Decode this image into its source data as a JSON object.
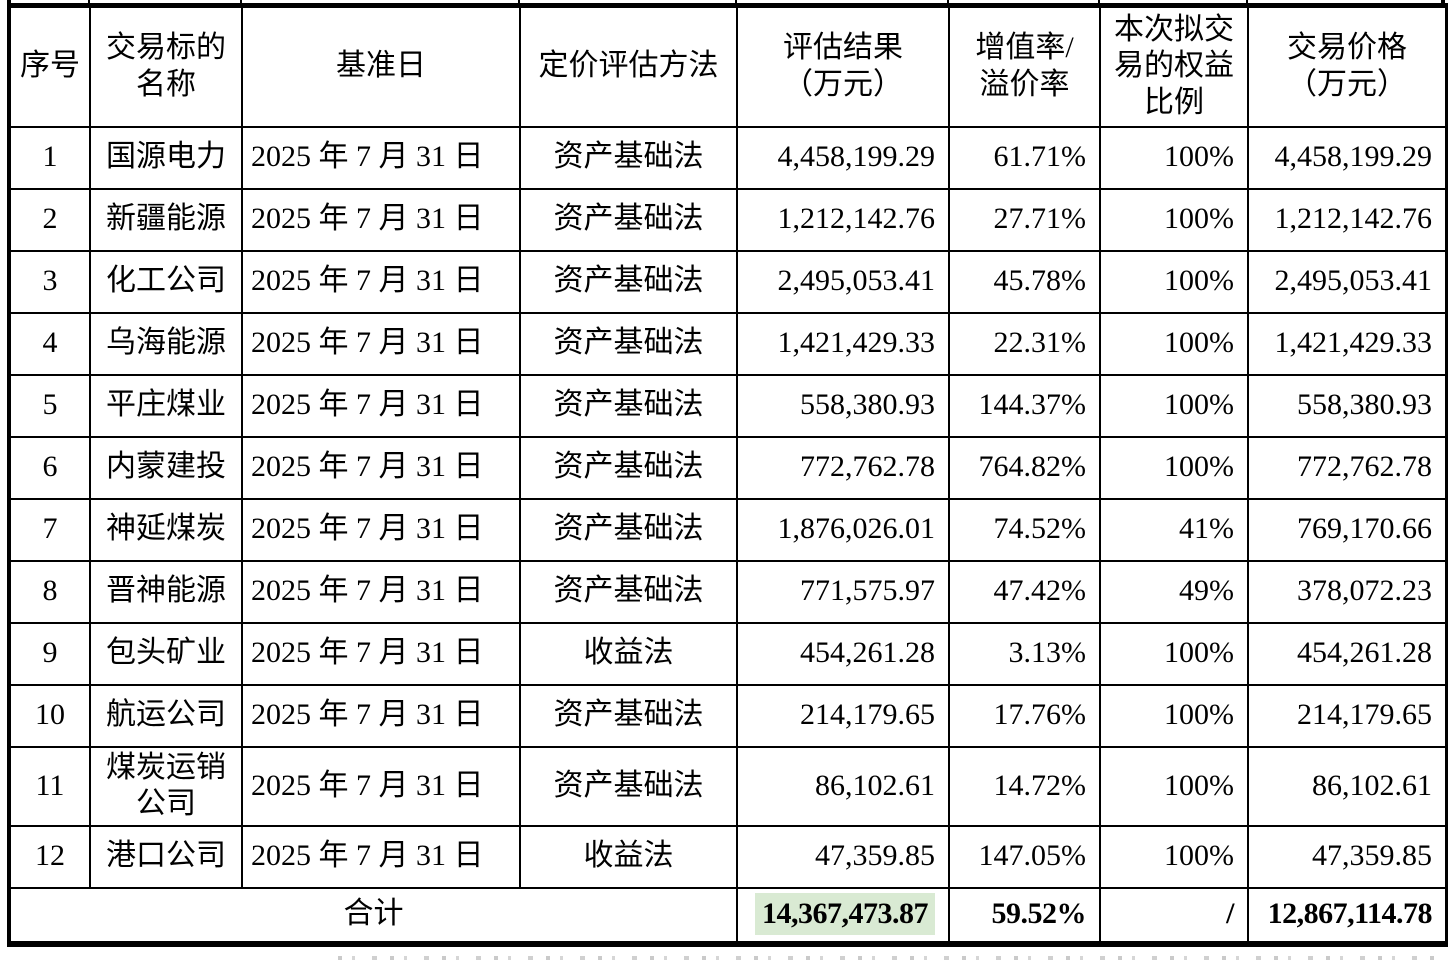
{
  "table": {
    "columns": [
      "序号",
      "交易标的\n名称",
      "基准日",
      "定价评估方法",
      "评估结果\n（万元）",
      "增值率/\n溢价率",
      "本次拟交\n易的权益\n比例",
      "交易价格\n（万元）"
    ],
    "rows": [
      {
        "no": "1",
        "name": "国源电力",
        "date": "2025 年 7 月 31 日",
        "method": "资产基础法",
        "result": "4,458,199.29",
        "rate": "61.71%",
        "ratio": "100%",
        "price": "4,458,199.29"
      },
      {
        "no": "2",
        "name": "新疆能源",
        "date": "2025 年 7 月 31 日",
        "method": "资产基础法",
        "result": "1,212,142.76",
        "rate": "27.71%",
        "ratio": "100%",
        "price": "1,212,142.76"
      },
      {
        "no": "3",
        "name": "化工公司",
        "date": "2025 年 7 月 31 日",
        "method": "资产基础法",
        "result": "2,495,053.41",
        "rate": "45.78%",
        "ratio": "100%",
        "price": "2,495,053.41"
      },
      {
        "no": "4",
        "name": "乌海能源",
        "date": "2025 年 7 月 31 日",
        "method": "资产基础法",
        "result": "1,421,429.33",
        "rate": "22.31%",
        "ratio": "100%",
        "price": "1,421,429.33"
      },
      {
        "no": "5",
        "name": "平庄煤业",
        "date": "2025 年 7 月 31 日",
        "method": "资产基础法",
        "result": "558,380.93",
        "rate": "144.37%",
        "ratio": "100%",
        "price": "558,380.93"
      },
      {
        "no": "6",
        "name": "内蒙建投",
        "date": "2025 年 7 月 31 日",
        "method": "资产基础法",
        "result": "772,762.78",
        "rate": "764.82%",
        "ratio": "100%",
        "price": "772,762.78"
      },
      {
        "no": "7",
        "name": "神延煤炭",
        "date": "2025 年 7 月 31 日",
        "method": "资产基础法",
        "result": "1,876,026.01",
        "rate": "74.52%",
        "ratio": "41%",
        "price": "769,170.66"
      },
      {
        "no": "8",
        "name": "晋神能源",
        "date": "2025 年 7 月 31 日",
        "method": "资产基础法",
        "result": "771,575.97",
        "rate": "47.42%",
        "ratio": "49%",
        "price": "378,072.23"
      },
      {
        "no": "9",
        "name": "包头矿业",
        "date": "2025 年 7 月 31 日",
        "method": "收益法",
        "result": "454,261.28",
        "rate": "3.13%",
        "ratio": "100%",
        "price": "454,261.28"
      },
      {
        "no": "10",
        "name": "航运公司",
        "date": "2025 年 7 月 31 日",
        "method": "资产基础法",
        "result": "214,179.65",
        "rate": "17.76%",
        "ratio": "100%",
        "price": "214,179.65"
      },
      {
        "no": "11",
        "name": "煤炭运销公司",
        "date": "2025 年 7 月 31 日",
        "method": "资产基础法",
        "result": "86,102.61",
        "rate": "14.72%",
        "ratio": "100%",
        "price": "86,102.61"
      },
      {
        "no": "12",
        "name": "港口公司",
        "date": "2025 年 7 月 31 日",
        "method": "收益法",
        "result": "47,359.85",
        "rate": "147.05%",
        "ratio": "100%",
        "price": "47,359.85"
      }
    ],
    "total": {
      "label": "合计",
      "result": "14,367,473.87",
      "rate": "59.52%",
      "ratio": "/",
      "price": "12,867,114.78"
    },
    "highlight_color": "#d9ead3"
  }
}
